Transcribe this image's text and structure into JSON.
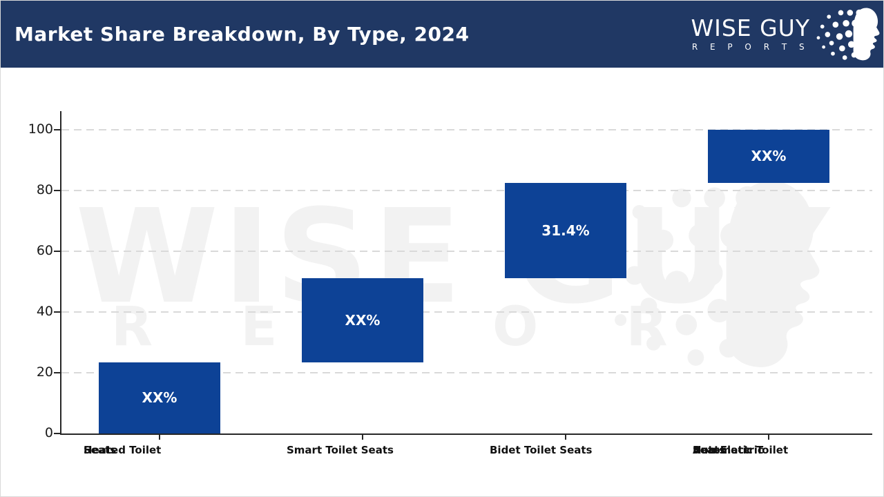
{
  "header": {
    "title": "Market Share Breakdown, By Type, 2024",
    "logo": {
      "name": "WISE GUY",
      "tagline": "R E P O R T S"
    }
  },
  "watermark": {
    "line1": "WISE GUY",
    "line2": "R E P O R T S"
  },
  "colors": {
    "header_bg": "#203864",
    "bar": "#0d4296",
    "bar_label": "#ffffff",
    "grid": "#d9d9d9",
    "axis": "#262626",
    "text": "#1a1a1a",
    "watermark": "#f2f2f2",
    "border": "#d9d9d9"
  },
  "chart_data": {
    "type": "bar",
    "subtype": "waterfall (floating stacked segments, total = 100%)",
    "title": "Market Share Breakdown, By Type, 2024",
    "categories": [
      "Heated Toilet Seats",
      "Smart Toilet Seats",
      "Bidet Toilet Seats",
      "Non-Electric Automatic Toilet Seats"
    ],
    "category_wrap": [
      [
        "Heated Toilet",
        "Seats"
      ],
      [
        "Smart Toilet Seats"
      ],
      [
        "Bidet Toilet Seats"
      ],
      [
        "Non-Electric",
        "Automatic Toilet",
        "Seats"
      ]
    ],
    "bars": [
      {
        "category": "Heated Toilet Seats",
        "start": 0,
        "end": 23.5,
        "value": 23.5,
        "label": "XX%"
      },
      {
        "category": "Smart Toilet Seats",
        "start": 23.5,
        "end": 51.2,
        "value": 27.7,
        "label": "XX%"
      },
      {
        "category": "Bidet Toilet Seats",
        "start": 51.2,
        "end": 82.6,
        "value": 31.4,
        "label": "31.4%"
      },
      {
        "category": "Non-Electric Automatic Toilet Seats",
        "start": 82.6,
        "end": 100,
        "value": 17.4,
        "label": "XX%"
      }
    ],
    "xlabel": "",
    "ylabel": "",
    "ylim": [
      0,
      100
    ],
    "yticks": [
      0,
      20,
      40,
      60,
      80,
      100
    ],
    "grid": "horizontal dashed",
    "legend": "none"
  }
}
